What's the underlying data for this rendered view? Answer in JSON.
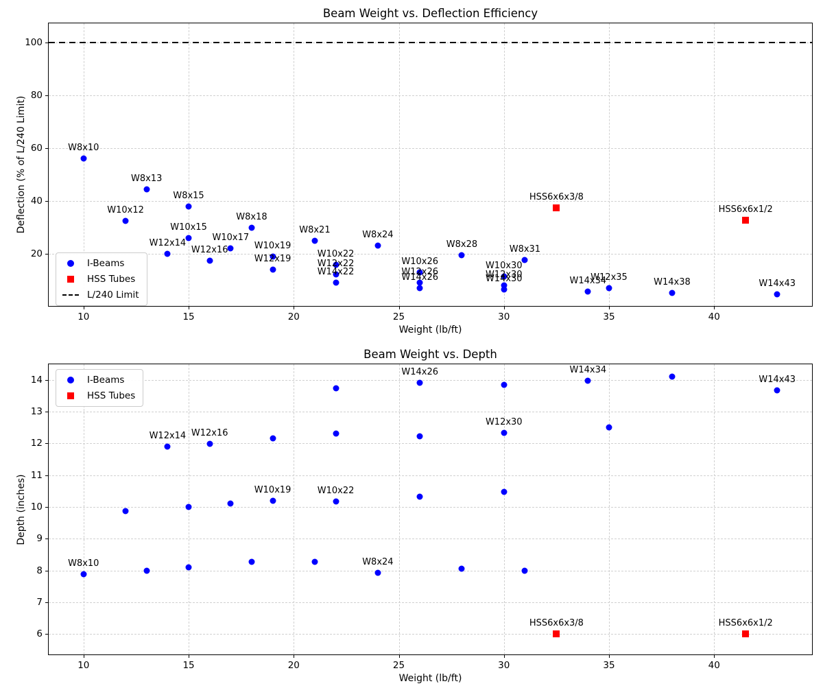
{
  "figure": {
    "background": "#ffffff"
  },
  "colors": {
    "ibeam": "#0000ff",
    "hss": "#ff0000",
    "ref_line": "#000000",
    "grid": "#d0d0d0"
  },
  "chart_data": [
    {
      "type": "scatter",
      "title": "Beam Weight vs. Deflection Efficiency",
      "xlabel": "Weight (lb/ft)",
      "ylabel": "Deflection (% of L/240 Limit)",
      "xlim": [
        8.31,
        44.69
      ],
      "ylim": [
        0,
        107.5
      ],
      "xticks": [
        10,
        15,
        20,
        25,
        30,
        35,
        40
      ],
      "yticks": [
        20,
        40,
        60,
        80,
        100
      ],
      "grid": true,
      "legend": {
        "position": "lower-left",
        "entries": [
          "I-Beams",
          "HSS Tubes",
          "L/240 Limit"
        ]
      },
      "ref_lines": [
        {
          "y": 100,
          "label": "L/240 Limit",
          "color": "#000000",
          "style": "dashed"
        }
      ],
      "series": [
        {
          "name": "I-Beams",
          "marker": "circle",
          "color": "#0000ff",
          "points": [
            {
              "label": "W8x10",
              "x": 10,
              "y": 56,
              "show_label": true
            },
            {
              "label": "W10x12",
              "x": 12,
              "y": 32.5,
              "show_label": true
            },
            {
              "label": "W8x13",
              "x": 13,
              "y": 44.5,
              "show_label": true
            },
            {
              "label": "W12x14",
              "x": 14,
              "y": 20,
              "show_label": true
            },
            {
              "label": "W8x15",
              "x": 15,
              "y": 37.8,
              "show_label": true
            },
            {
              "label": "W10x15",
              "x": 15,
              "y": 26,
              "show_label": true
            },
            {
              "label": "W12x16",
              "x": 16,
              "y": 17.5,
              "show_label": true
            },
            {
              "label": "W10x17",
              "x": 17,
              "y": 22,
              "show_label": true
            },
            {
              "label": "W8x18",
              "x": 18,
              "y": 29.8,
              "show_label": true
            },
            {
              "label": "W10x19",
              "x": 19,
              "y": 19,
              "show_label": true
            },
            {
              "label": "W12x19",
              "x": 19,
              "y": 14,
              "show_label": true
            },
            {
              "label": "W8x21",
              "x": 21,
              "y": 24.8,
              "show_label": true
            },
            {
              "label": "W10x22",
              "x": 22,
              "y": 15.8,
              "show_label": true
            },
            {
              "label": "W12x22",
              "x": 22,
              "y": 12.2,
              "show_label": true
            },
            {
              "label": "W14x22",
              "x": 22,
              "y": 9.2,
              "show_label": true
            },
            {
              "label": "W8x24",
              "x": 24,
              "y": 23,
              "show_label": true
            },
            {
              "label": "W10x26",
              "x": 26,
              "y": 13,
              "show_label": true
            },
            {
              "label": "W12x26",
              "x": 26,
              "y": 9.2,
              "show_label": true
            },
            {
              "label": "W14x26",
              "x": 26,
              "y": 7,
              "show_label": true
            },
            {
              "label": "W8x28",
              "x": 28,
              "y": 19.5,
              "show_label": true
            },
            {
              "label": "W10x30",
              "x": 30,
              "y": 11.3,
              "show_label": true
            },
            {
              "label": "W12x30",
              "x": 30,
              "y": 8.1,
              "show_label": true
            },
            {
              "label": "W14x30",
              "x": 30,
              "y": 6.5,
              "show_label": true
            },
            {
              "label": "W8x31",
              "x": 31,
              "y": 17.7,
              "show_label": true
            },
            {
              "label": "W14x34",
              "x": 34,
              "y": 5.7,
              "show_label": true
            },
            {
              "label": "W12x35",
              "x": 35,
              "y": 6.9,
              "show_label": true
            },
            {
              "label": "W14x38",
              "x": 38,
              "y": 5.2,
              "show_label": true
            },
            {
              "label": "W14x43",
              "x": 43,
              "y": 4.8,
              "show_label": true
            }
          ]
        },
        {
          "name": "HSS Tubes",
          "marker": "square",
          "color": "#ff0000",
          "points": [
            {
              "label": "HSS6x6x3/8",
              "x": 32.5,
              "y": 37.3,
              "show_label": true
            },
            {
              "label": "HSS6x6x1/2",
              "x": 41.5,
              "y": 32.6,
              "show_label": true
            }
          ]
        }
      ]
    },
    {
      "type": "scatter",
      "title": "Beam Weight vs. Depth",
      "xlabel": "Weight (lb/ft)",
      "ylabel": "Depth (inches)",
      "xlim": [
        8.31,
        44.69
      ],
      "ylim": [
        5.34,
        14.51
      ],
      "xticks": [
        10,
        15,
        20,
        25,
        30,
        35,
        40
      ],
      "yticks": [
        6,
        7,
        8,
        9,
        10,
        11,
        12,
        13,
        14
      ],
      "grid": true,
      "legend": {
        "position": "upper-left",
        "entries": [
          "I-Beams",
          "HSS Tubes"
        ]
      },
      "ref_lines": [],
      "series": [
        {
          "name": "I-Beams",
          "marker": "circle",
          "color": "#0000ff",
          "points": [
            {
              "label": "W8x10",
              "x": 10,
              "y": 7.89,
              "show_label": true
            },
            {
              "label": "W10x12",
              "x": 12,
              "y": 9.87,
              "show_label": false
            },
            {
              "label": "W8x13",
              "x": 13,
              "y": 7.99,
              "show_label": false
            },
            {
              "label": "W12x14",
              "x": 14,
              "y": 11.91,
              "show_label": true
            },
            {
              "label": "W8x15",
              "x": 15,
              "y": 8.11,
              "show_label": false
            },
            {
              "label": "W10x15",
              "x": 15,
              "y": 9.99,
              "show_label": false
            },
            {
              "label": "W12x16",
              "x": 16,
              "y": 11.99,
              "show_label": true
            },
            {
              "label": "W10x17",
              "x": 17,
              "y": 10.11,
              "show_label": false
            },
            {
              "label": "W8x18",
              "x": 18,
              "y": 8.28,
              "show_label": false
            },
            {
              "label": "W10x19",
              "x": 19,
              "y": 10.2,
              "show_label": true
            },
            {
              "label": "W12x19",
              "x": 19,
              "y": 12.16,
              "show_label": false
            },
            {
              "label": "W8x21",
              "x": 21,
              "y": 8.28,
              "show_label": false
            },
            {
              "label": "W10x22",
              "x": 22,
              "y": 10.17,
              "show_label": true
            },
            {
              "label": "W12x22",
              "x": 22,
              "y": 12.31,
              "show_label": false
            },
            {
              "label": "W14x22",
              "x": 22,
              "y": 13.74,
              "show_label": false
            },
            {
              "label": "W8x24",
              "x": 24,
              "y": 7.93,
              "show_label": true
            },
            {
              "label": "W10x26",
              "x": 26,
              "y": 10.33,
              "show_label": false
            },
            {
              "label": "W12x26",
              "x": 26,
              "y": 12.22,
              "show_label": false
            },
            {
              "label": "W14x26",
              "x": 26,
              "y": 13.91,
              "show_label": true
            },
            {
              "label": "W8x28",
              "x": 28,
              "y": 8.06,
              "show_label": false
            },
            {
              "label": "W10x30",
              "x": 30,
              "y": 10.47,
              "show_label": false
            },
            {
              "label": "W12x30",
              "x": 30,
              "y": 12.34,
              "show_label": true
            },
            {
              "label": "W14x30",
              "x": 30,
              "y": 13.84,
              "show_label": false
            },
            {
              "label": "W8x31",
              "x": 31,
              "y": 8.0,
              "show_label": false
            },
            {
              "label": "W14x34",
              "x": 34,
              "y": 13.98,
              "show_label": true
            },
            {
              "label": "W12x35",
              "x": 35,
              "y": 12.5,
              "show_label": false
            },
            {
              "label": "W14x38",
              "x": 38,
              "y": 14.1,
              "show_label": false
            },
            {
              "label": "W14x43",
              "x": 43,
              "y": 13.66,
              "show_label": true
            }
          ]
        },
        {
          "name": "HSS Tubes",
          "marker": "square",
          "color": "#ff0000",
          "points": [
            {
              "label": "HSS6x6x3/8",
              "x": 32.5,
              "y": 6.0,
              "show_label": true
            },
            {
              "label": "HSS6x6x1/2",
              "x": 41.5,
              "y": 6.0,
              "show_label": true
            }
          ]
        }
      ]
    }
  ]
}
